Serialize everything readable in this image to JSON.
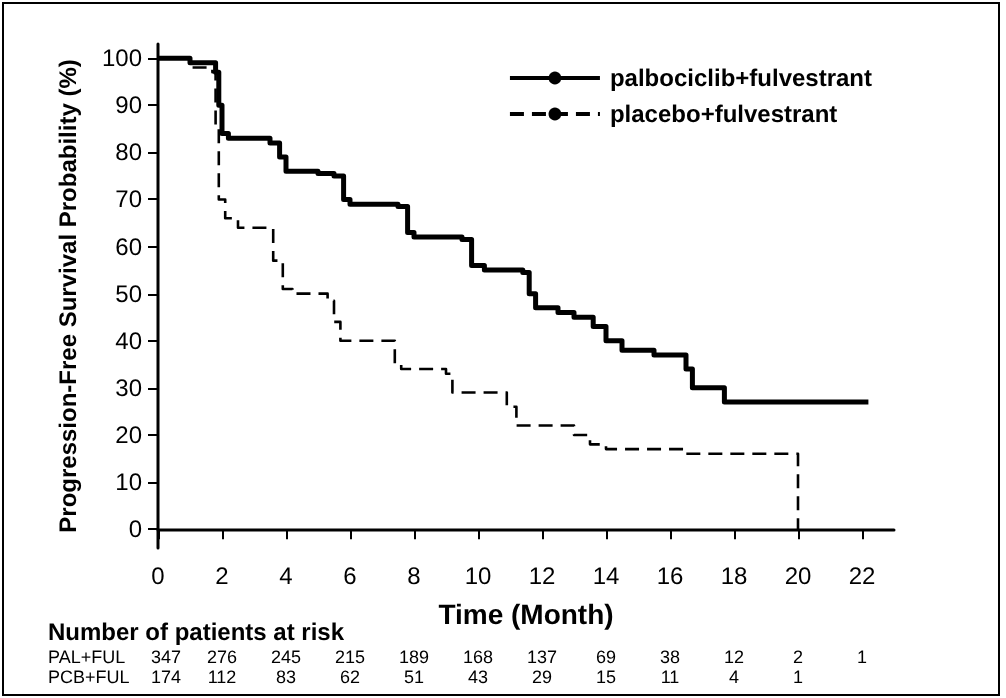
{
  "chart_data": {
    "type": "step",
    "xlabel": "Time (Month)",
    "ylabel": "Progression-Free Survival Probability (%)",
    "xlim": [
      0,
      23
    ],
    "xticks": [
      0,
      2,
      4,
      6,
      8,
      10,
      12,
      14,
      16,
      18,
      20,
      22
    ],
    "ylim": [
      -4,
      103
    ],
    "yticks": [
      0,
      10,
      20,
      30,
      40,
      50,
      60,
      70,
      80,
      90,
      100
    ],
    "legend": "top right",
    "grid": false,
    "series": [
      {
        "name": "palbociclib+fulvestrant",
        "color": "#000000",
        "line_style": "solid",
        "x": [
          0,
          1,
          1.8,
          1.9,
          2,
          2.2,
          3.5,
          3.8,
          4,
          5,
          5.5,
          5.8,
          6,
          7.5,
          7.8,
          8,
          9.5,
          9.8,
          10.2,
          11.4,
          11.6,
          11.8,
          12.5,
          13,
          13.6,
          14,
          14.5,
          15.5,
          16.5,
          16.7,
          17.7,
          22.2
        ],
        "values": [
          100,
          99,
          97,
          90,
          84,
          83,
          82,
          79,
          76,
          75.5,
          75,
          70,
          69,
          68.5,
          63,
          62,
          61.5,
          56,
          55,
          54.5,
          50,
          47,
          46,
          45,
          43,
          40,
          38,
          37,
          34,
          30,
          27,
          27
        ]
      },
      {
        "name": "placebo+fulvestrant",
        "color": "#000000",
        "line_style": "dashed",
        "x": [
          0,
          1,
          1.7,
          1.8,
          1.9,
          2.1,
          2.5,
          3.3,
          3.6,
          3.9,
          4.2,
          5.3,
          5.5,
          5.7,
          7.3,
          7.4,
          7.6,
          9.0,
          9.2,
          10.7,
          10.9,
          11.2,
          12.5,
          13,
          13.5,
          14,
          16.3,
          16.5,
          19.9,
          20
        ],
        "values": [
          100,
          98,
          97,
          85,
          70,
          66,
          64,
          64,
          57,
          51,
          50,
          48.5,
          44,
          40,
          40,
          35,
          34,
          33,
          29,
          29,
          26,
          22,
          22,
          20,
          18,
          17,
          17,
          16,
          16,
          0
        ]
      }
    ],
    "annotations": [
      "Number of patients at risk",
      "PAL+FUL 347 276 245 215 189 168 137 69 38 12 2 1",
      "PCB+FUL 174 112 83 62 51 43 29 15 11 4 1"
    ]
  }
}
